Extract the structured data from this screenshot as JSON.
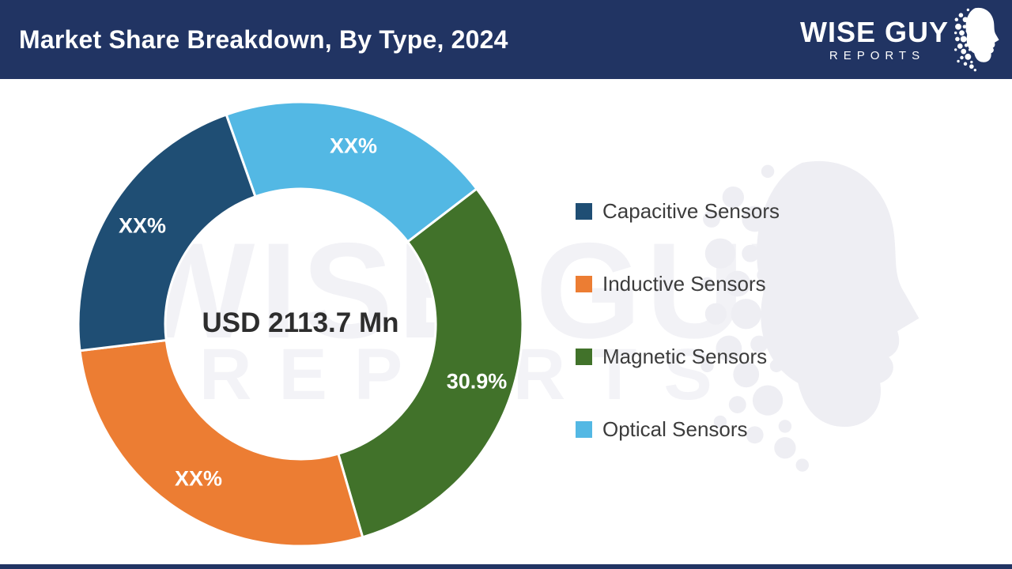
{
  "header": {
    "title": "Market Share Breakdown, By Type, 2024",
    "bg_color": "#213463",
    "logo": {
      "line1": "WISE GUY",
      "line2": "REPORTS"
    }
  },
  "watermark": {
    "line1": "WISE GUY",
    "line2": "REPORTS"
  },
  "chart_data": {
    "type": "pie",
    "subtype": "donut",
    "title": "Market Share Breakdown, By Type, 2024",
    "center_label": "USD 2113.7 Mn",
    "start_angle_deg": -19.5,
    "inner_radius_ratio": 0.61,
    "legend_position": "right",
    "segments": [
      {
        "name": "Optical Sensors",
        "label": "XX%",
        "value_pct": 20.0,
        "color": "#53B8E4"
      },
      {
        "name": "Magnetic Sensors",
        "label": "30.9%",
        "value_pct": 30.9,
        "color": "#41722A"
      },
      {
        "name": "Inductive Sensors",
        "label": "XX%",
        "value_pct": 27.6,
        "color": "#EC7D33"
      },
      {
        "name": "Capacitive Sensors",
        "label": "XX%",
        "value_pct": 21.5,
        "color": "#1F4E74"
      }
    ]
  },
  "legend": {
    "items": [
      {
        "label": "Capacitive Sensors",
        "color": "#1F4E74"
      },
      {
        "label": "Inductive Sensors",
        "color": "#EC7D33"
      },
      {
        "label": "Magnetic Sensors",
        "color": "#41722A"
      },
      {
        "label": "Optical Sensors",
        "color": "#53B8E4"
      }
    ]
  }
}
